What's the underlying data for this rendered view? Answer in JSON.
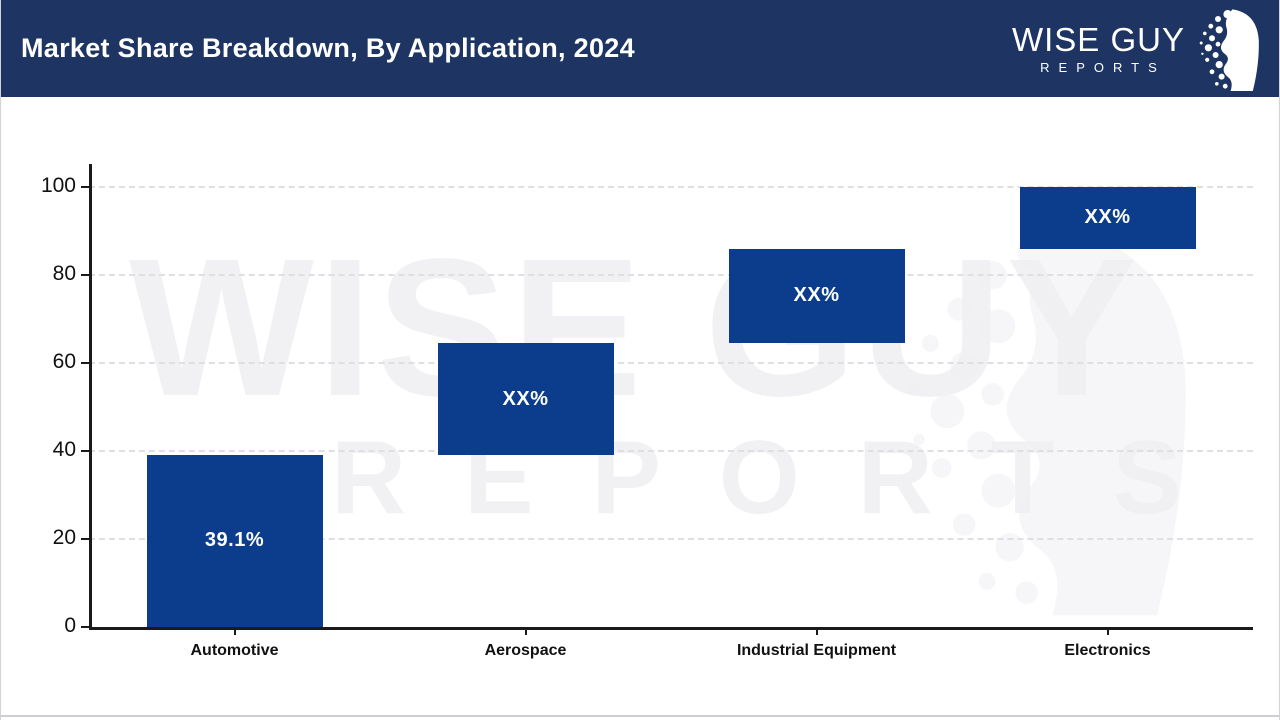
{
  "header": {
    "title": "Market Share Breakdown, By Application, 2024",
    "logo": {
      "line1": "WISE GUY",
      "line2": "REPORTS"
    }
  },
  "watermark": {
    "line1": "WISE GUY",
    "line2": "REPORTS"
  },
  "colors": {
    "header_bg": "#1e3462",
    "bar": "#0c3d8c",
    "grid": "#dfdfe3",
    "axis": "#1a1a1a",
    "watermark": "#f1f1f4",
    "bar_label": "#ffffff"
  },
  "chart_data": {
    "type": "bar",
    "subtype": "waterfall",
    "title": "Market Share Breakdown, By Application, 2024",
    "categories": [
      "Automotive",
      "Aerospace",
      "Industrial Equipment",
      "Electronics"
    ],
    "series": [
      {
        "name": "Market share (%)",
        "segments": [
          {
            "category": "Automotive",
            "start": 0,
            "end": 39.1,
            "label": "39.1%"
          },
          {
            "category": "Aerospace",
            "start": 39.1,
            "end": 64.5,
            "label": "XX%"
          },
          {
            "category": "Industrial Equipment",
            "start": 64.5,
            "end": 86,
            "label": "XX%"
          },
          {
            "category": "Electronics",
            "start": 86,
            "end": 100,
            "label": "XX%"
          }
        ]
      }
    ],
    "xlabel": "",
    "ylabel": "",
    "ylim": [
      0,
      100
    ],
    "yticks": [
      0,
      20,
      40,
      60,
      80,
      100
    ],
    "grid": "horizontal-dashed",
    "legend": "none"
  }
}
